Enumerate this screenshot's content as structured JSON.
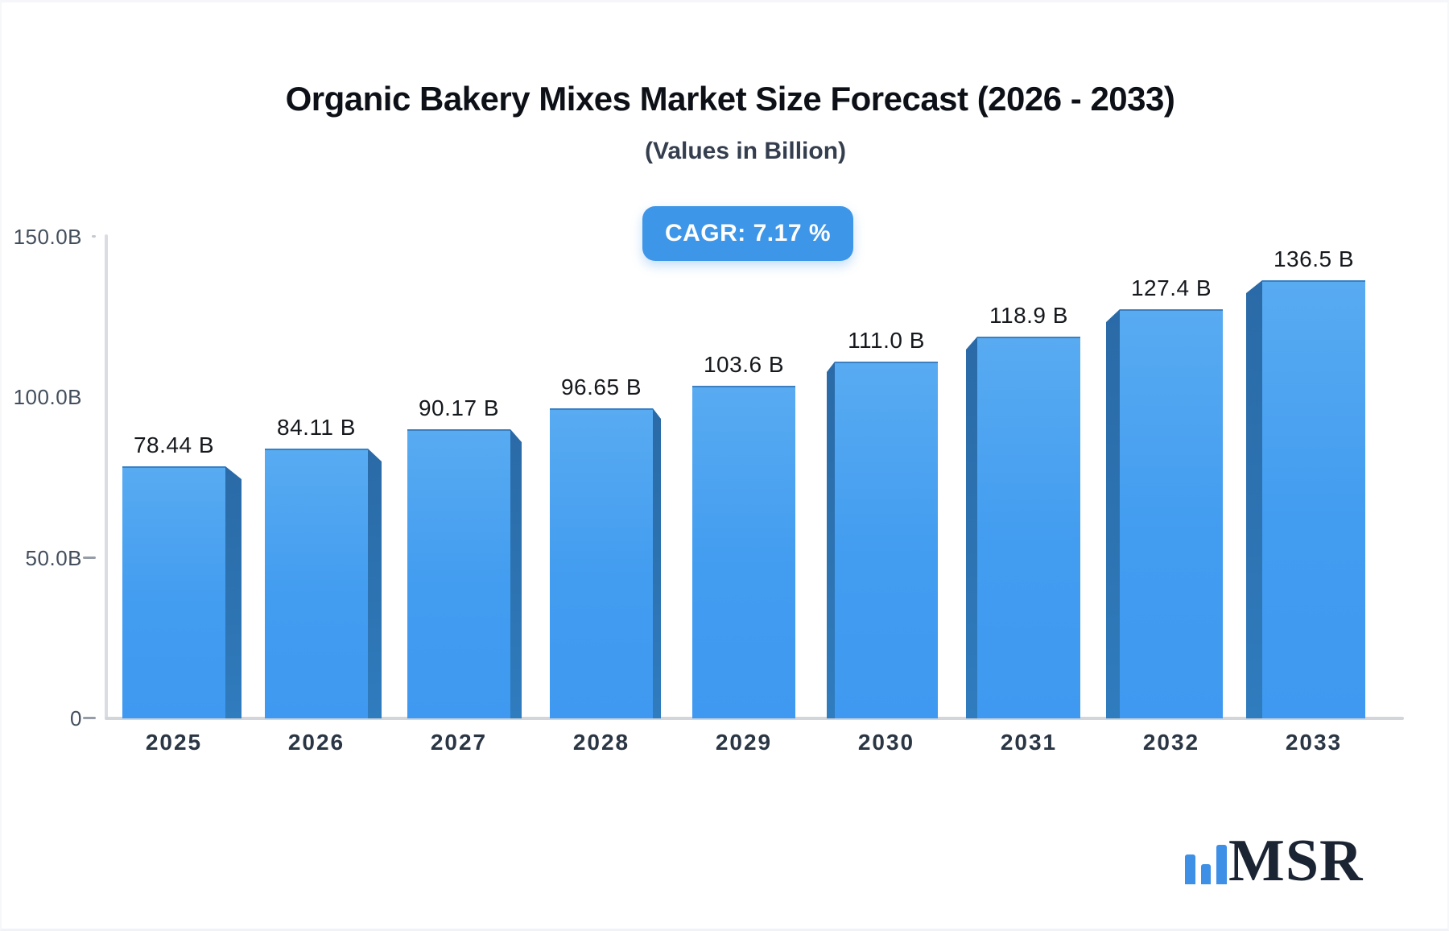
{
  "header": {
    "title": "Organic Bakery Mixes Market Size Forecast (2026 - 2033)",
    "subtitle": "(Values in Billion)",
    "cagr_label": "CAGR: 7.17 %"
  },
  "chart_data": {
    "type": "bar",
    "title": "Organic Bakery Mixes Market Size Forecast (2026 - 2033)",
    "subtitle": "(Values in Billion)",
    "cagr_percent": 7.17,
    "categories": [
      "2025",
      "2026",
      "2027",
      "2028",
      "2029",
      "2030",
      "2031",
      "2032",
      "2033"
    ],
    "values": [
      78.44,
      84.11,
      90.17,
      96.65,
      103.6,
      111.0,
      118.9,
      127.4,
      136.5
    ],
    "value_labels": [
      "78.44 B",
      "84.11 B",
      "90.17 B",
      "96.65 B",
      "103.6 B",
      "111.0 B",
      "118.9 B",
      "127.4 B",
      "136.5 B"
    ],
    "xlabel": "",
    "ylabel": "",
    "ylim": [
      0,
      150
    ],
    "yticks": [
      "150.0B",
      "100.0B",
      "50.0B",
      "0"
    ],
    "ytick_values": [
      150,
      100,
      50,
      0
    ],
    "grid": "off",
    "legend": "none",
    "bar_face_color": "#429cf0",
    "bar_side_color": "#2d73b2",
    "accent_color": "#3e96e9"
  },
  "branding": {
    "logo_text": "MSR",
    "logo_icon": "bar-chart-icon",
    "logo_text_color": "#1a2433",
    "logo_bar_color": "#3e8fe6"
  }
}
